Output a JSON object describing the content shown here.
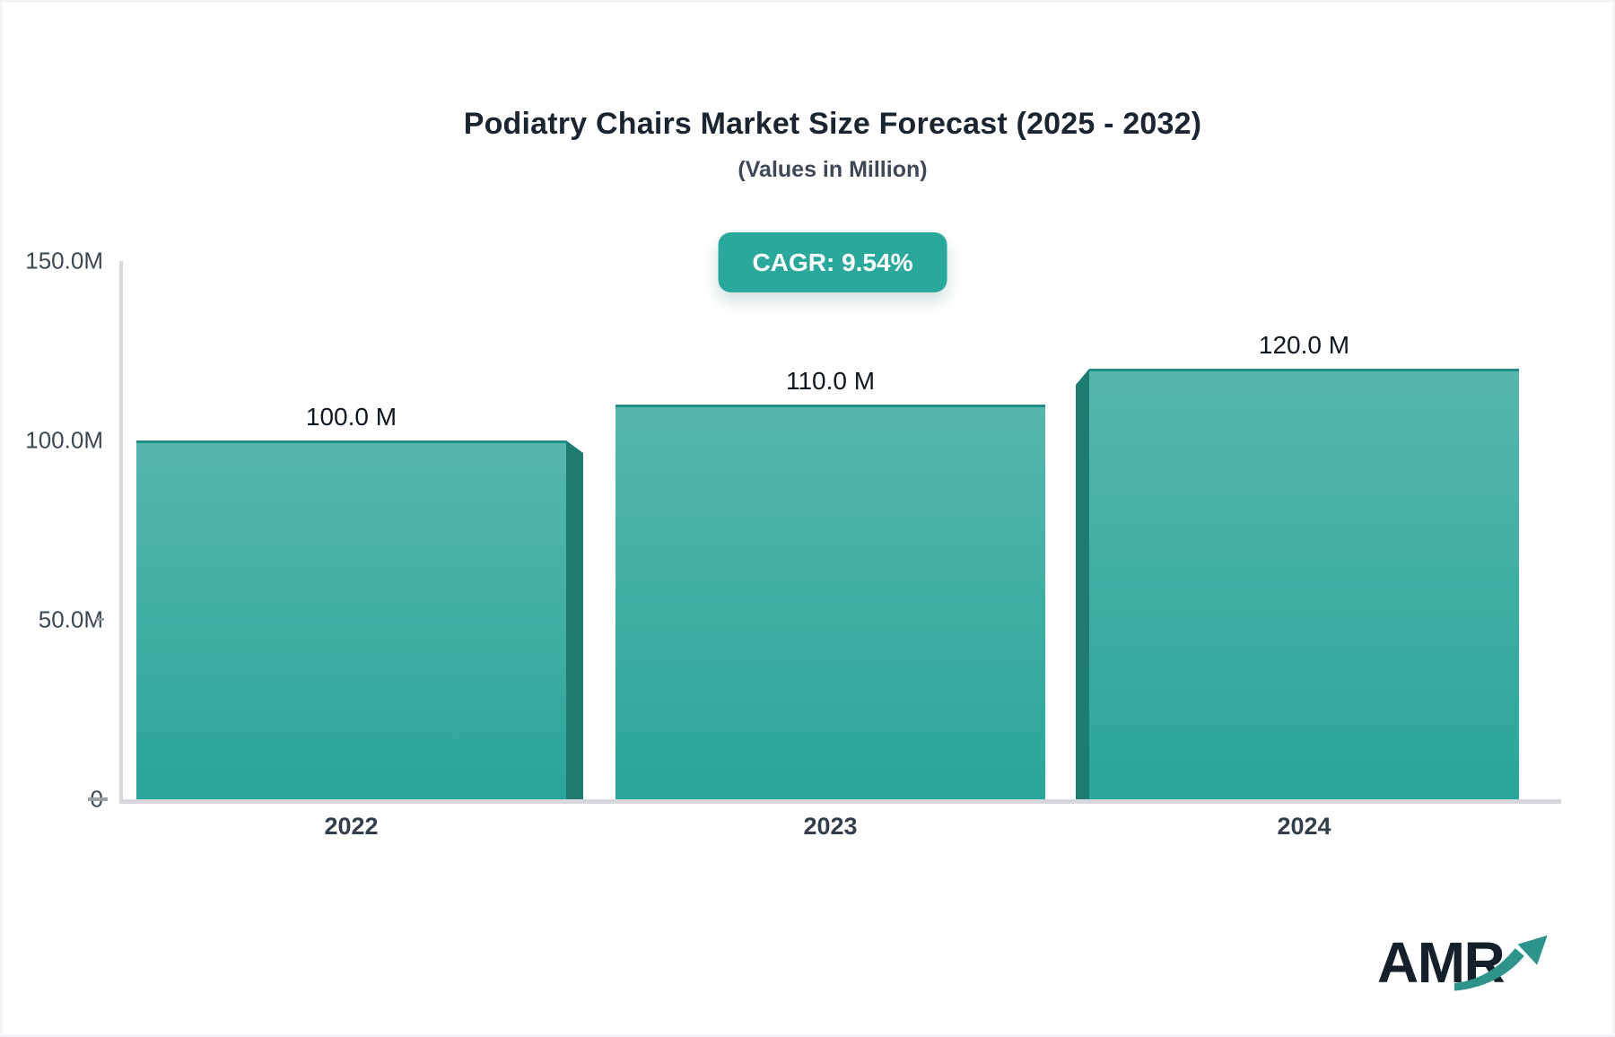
{
  "header": {
    "title": "Podiatry Chairs Market Size Forecast (2025 - 2032)",
    "subtitle": "(Values in Million)",
    "cagr_badge": "CAGR: 9.54%"
  },
  "chart_data": {
    "type": "bar",
    "title": "Podiatry Chairs Market Size Forecast (2025 - 2032)",
    "subtitle": "(Values in Million)",
    "unit": "Million",
    "categories": [
      "2022",
      "2023",
      "2024"
    ],
    "values": [
      100.0,
      110.0,
      120.0
    ],
    "data_labels": [
      "100.0 M",
      "110.0 M",
      "120.0 M"
    ],
    "xlabel": "",
    "ylabel": "",
    "ylim": [
      0,
      150
    ],
    "yticks": [
      {
        "value": 150,
        "label": "150.0M",
        "dash": false
      },
      {
        "value": 100,
        "label": "100.0M",
        "dash": false
      },
      {
        "value": 50,
        "label": "50.0M",
        "dash": true
      },
      {
        "value": 0,
        "label": "0",
        "dash": true
      }
    ],
    "grid": false,
    "legend": null,
    "bar_3d_sides": [
      "right",
      null,
      "left"
    ]
  },
  "logo": {
    "text": "AMR"
  },
  "colors": {
    "accent_teal": "#2ba89c",
    "bar_gradient_top": "#56b7ad",
    "bar_gradient_bottom": "#2aa59a",
    "bar_top_border": "#1f8e84",
    "bar_3d_side": "#1d7b72",
    "axis_line": "#d5d7dc",
    "title_text": "#1b2531",
    "subtitle_text": "#3e4857",
    "badge_text": "#ffffff",
    "value_label_text": "#0f1720",
    "tick_label_text": "#3b4856",
    "logo_text": "#16202c",
    "logo_arrow": "#2e948b"
  }
}
